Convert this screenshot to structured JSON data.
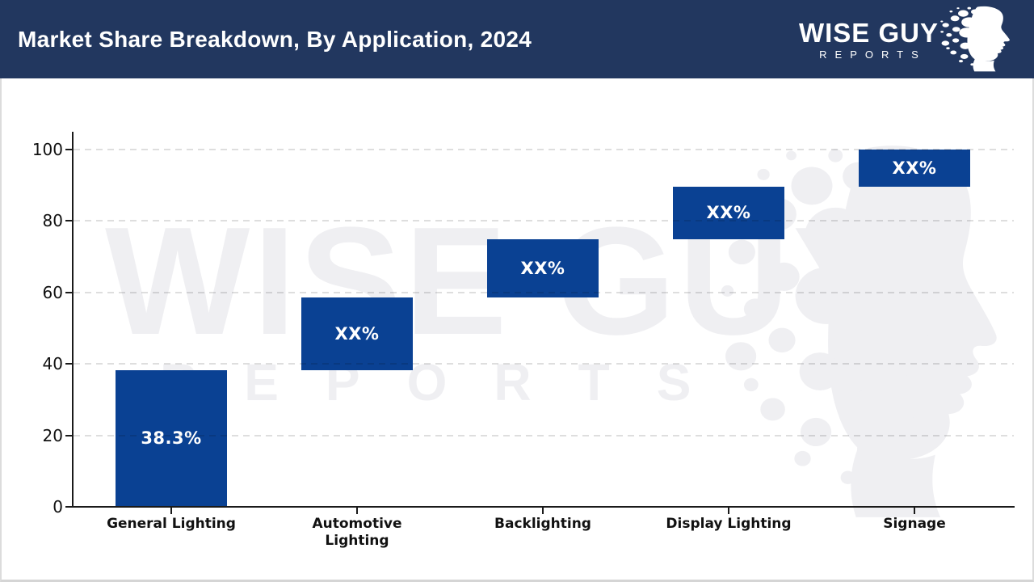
{
  "header": {
    "title": "Market Share Breakdown, By Application, 2024",
    "logo": {
      "line1": "WISE GUY",
      "line2": "REPORTS"
    }
  },
  "watermark": {
    "line1": "WISE GUY",
    "line2": "REPORTS"
  },
  "colors": {
    "header_bg": "#22375f",
    "bar": "#0a4193",
    "bar_label_text": "#ffffff",
    "axis": "#1a1a1a",
    "watermark": "#efeff2",
    "category_text": "#111111"
  },
  "chart_data": {
    "type": "bar",
    "subtype": "waterfall",
    "title": "Market Share Breakdown, By Application, 2024",
    "xlabel": "",
    "ylabel": "",
    "ylim": [
      0,
      104.5
    ],
    "yticks": [
      0,
      20,
      40,
      60,
      80,
      100
    ],
    "grid": "horizontal-dashed",
    "legend": null,
    "categories": [
      "General Lighting",
      "Automotive\nLighting",
      "Backlighting",
      "Display Lighting",
      "Signage"
    ],
    "segments": [
      {
        "category": "General Lighting",
        "start": 0,
        "end": 38.3,
        "label": "38.3%"
      },
      {
        "category": "Automotive\nLighting",
        "start": 38.3,
        "end": 58.5,
        "label": "XX%"
      },
      {
        "category": "Backlighting",
        "start": 58.5,
        "end": 74.8,
        "label": "XX%"
      },
      {
        "category": "Display Lighting",
        "start": 74.8,
        "end": 89.7,
        "label": "XX%"
      },
      {
        "category": "Signage",
        "start": 89.7,
        "end": 100,
        "label": "XX%"
      }
    ]
  }
}
